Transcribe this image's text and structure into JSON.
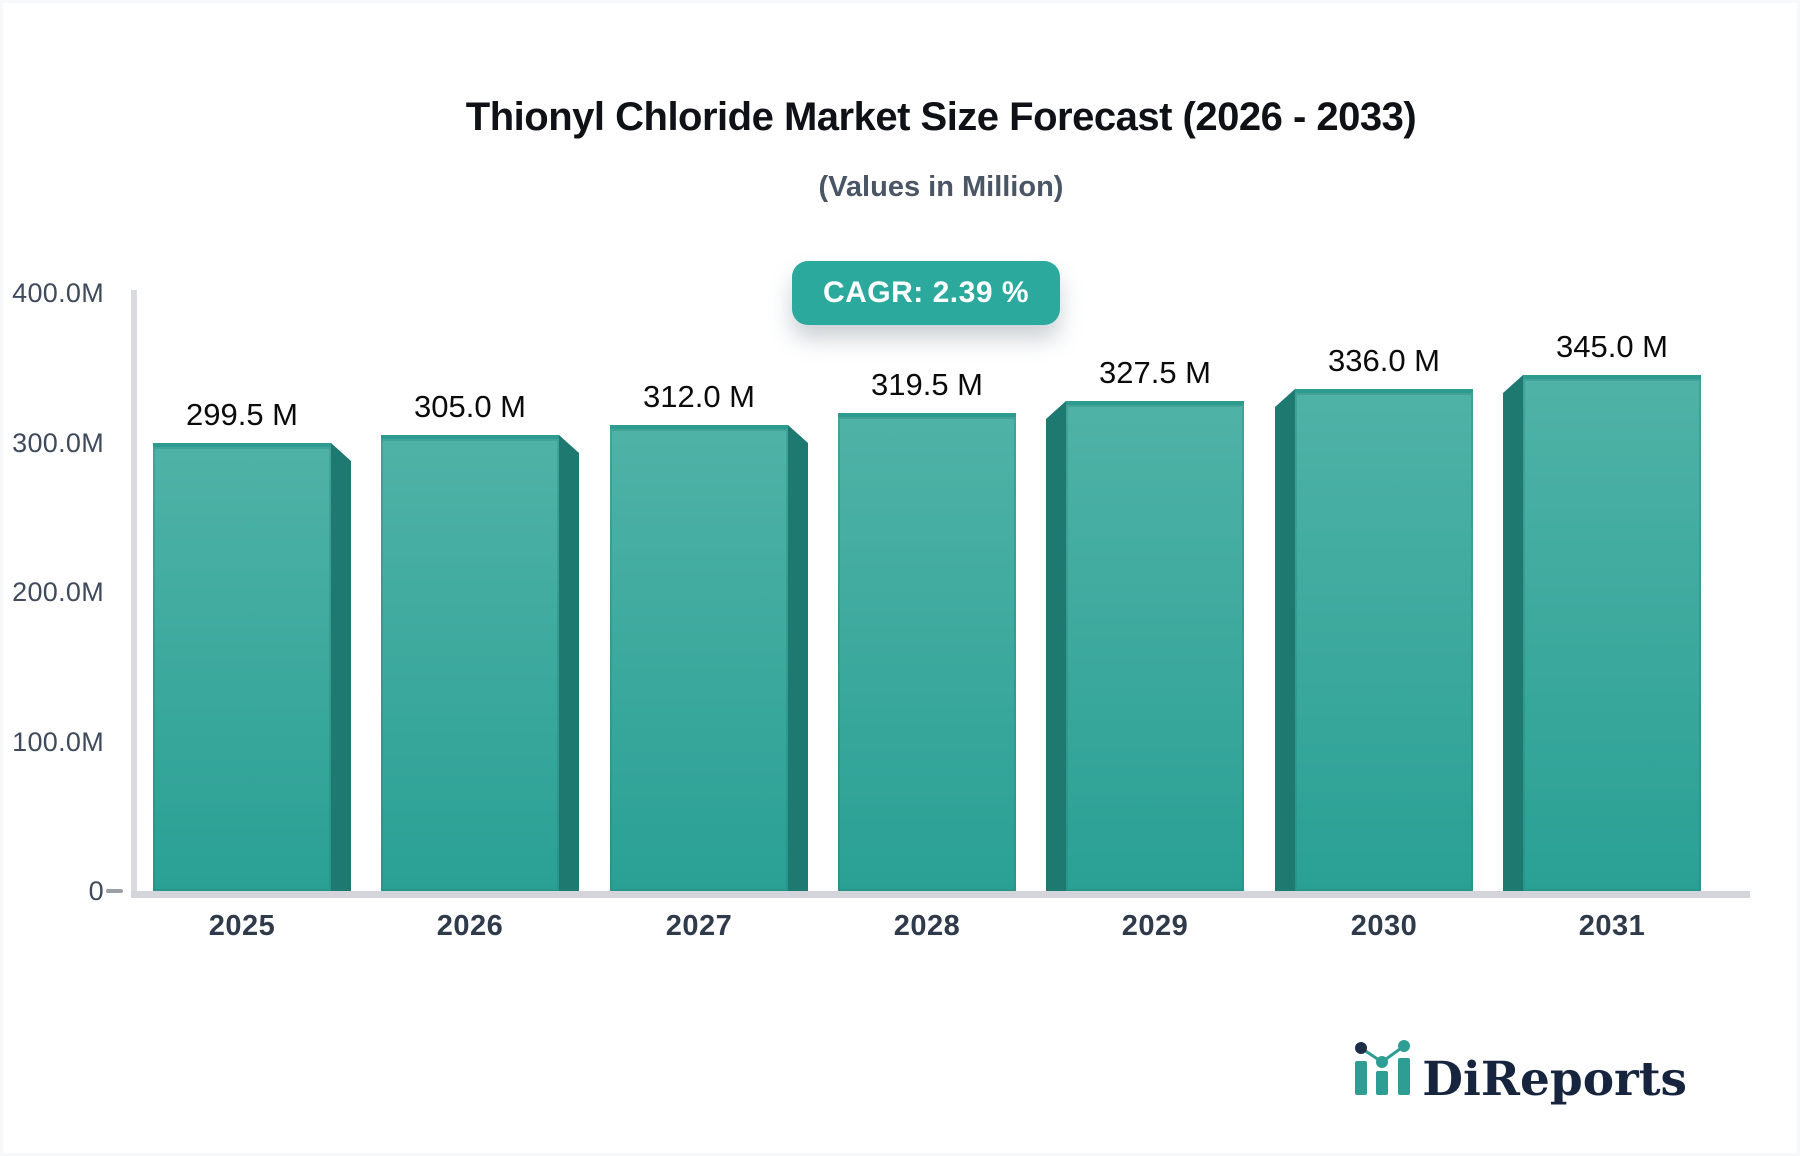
{
  "header": {
    "title": "Thionyl Chloride Market Size Forecast (2026 - 2033)",
    "subtitle": "(Values in Million)"
  },
  "cagr_badge": {
    "label": "CAGR: 2.39 %",
    "background": "#2CA99D",
    "text_color": "#FFFFFF"
  },
  "chart_data": {
    "type": "bar",
    "title": "Thionyl Chloride Market Size Forecast (2026 - 2033)",
    "subtitle": "(Values in Million)",
    "categories": [
      "2025",
      "2026",
      "2027",
      "2028",
      "2029",
      "2030",
      "2031"
    ],
    "values": [
      299.5,
      305.0,
      312.0,
      319.5,
      327.5,
      336.0,
      345.0
    ],
    "bar_labels": [
      "299.5 M",
      "305.0 M",
      "312.0 M",
      "319.5 M",
      "327.5 M",
      "336.0 M",
      "345.0 M"
    ],
    "y_ticks": [
      {
        "value": 400,
        "label": "400.0M"
      },
      {
        "value": 300,
        "label": "300.0M"
      },
      {
        "value": 200,
        "label": "200.0M"
      },
      {
        "value": 100,
        "label": "100.0M"
      },
      {
        "value": 0,
        "label": "0"
      }
    ],
    "ylim": [
      0,
      400
    ],
    "grid": "off",
    "legend": "none",
    "cagr_percent": 2.39,
    "effect": "3d-bars, perspective vanishing at center bar",
    "colors": {
      "bar_top": "#4FB2A7",
      "bar_bottom": "#2AA094",
      "bar_edge": "#2D9B90",
      "bar_side": "#1E7A70",
      "axis_line": "#D9DBE0",
      "tick_label": "#3F4B5C",
      "category_label": "#2F3A4A",
      "value_label": "#0B0B0B"
    }
  },
  "logo": {
    "text": "DiReports",
    "icon": "bar-chart-trend-icon",
    "text_color": "#17243E",
    "accent_color": "#2E9D94",
    "dot_color": "#1D2E47"
  }
}
